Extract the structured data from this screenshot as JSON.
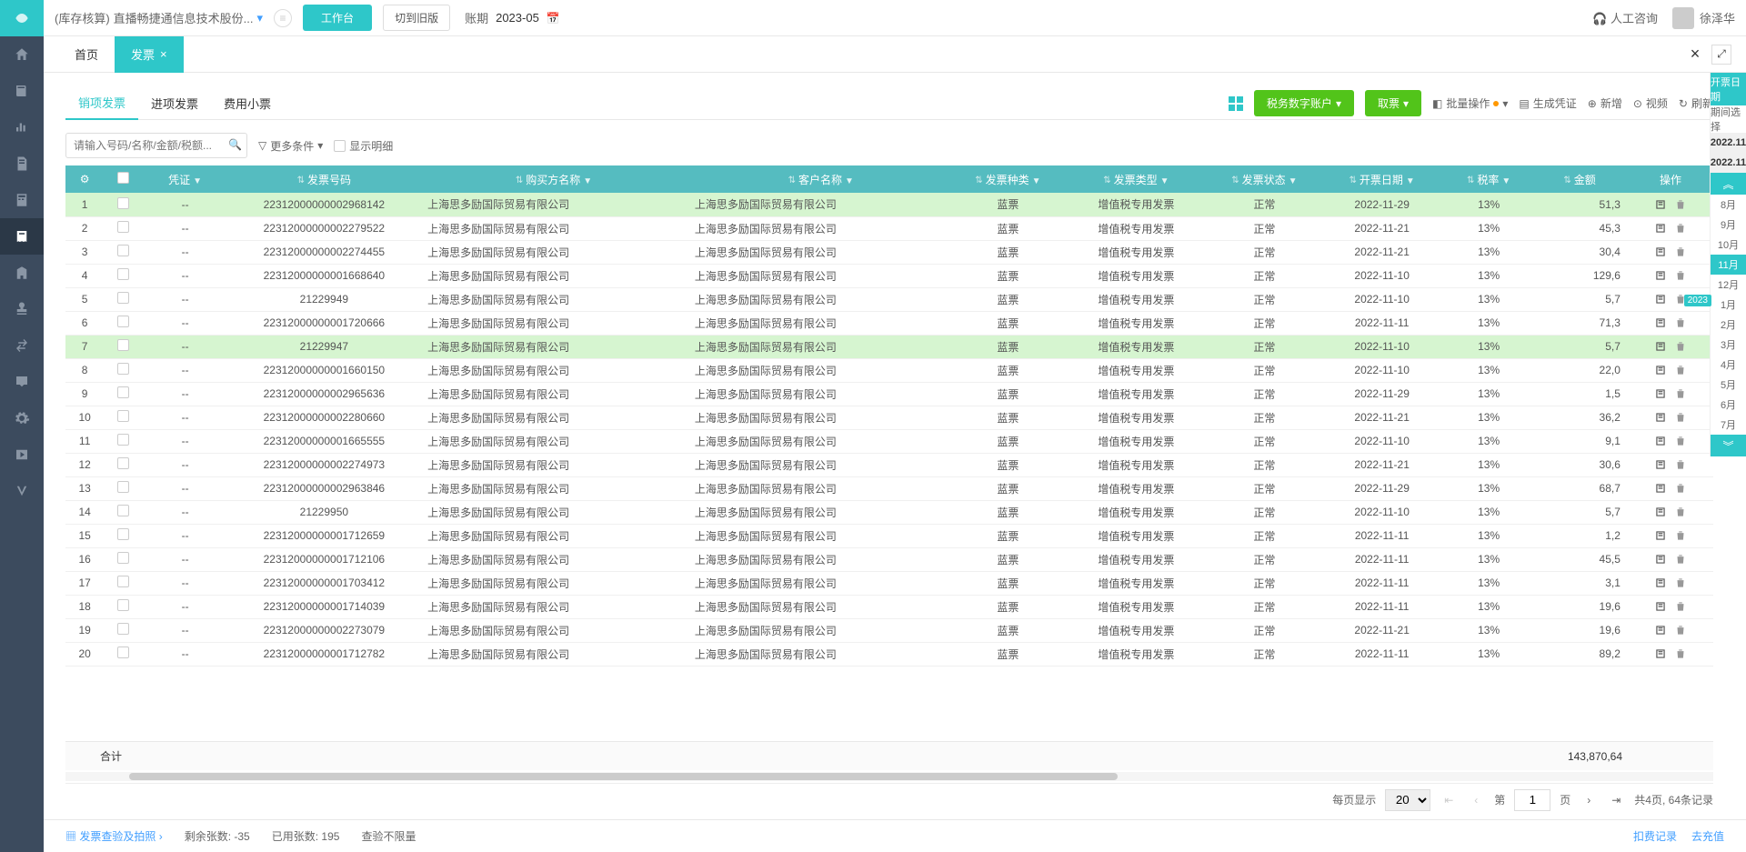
{
  "header": {
    "org_prefix": "(库存核算)",
    "org_name": "直播畅捷通信息技术股份...",
    "workspace_btn": "工作台",
    "switch_old": "切到旧版",
    "period_label": "账期",
    "period_value": "2023-05",
    "consult": "人工咨询",
    "user_name": "徐泽华"
  },
  "tabs": {
    "home": "首页",
    "invoice": "发票"
  },
  "subtabs": {
    "sales": "销项发票",
    "purchase": "进项发票",
    "expense": "费用小票"
  },
  "actions": {
    "tax_account": "税务数字账户",
    "get_invoice": "取票",
    "batch": "批量操作",
    "gen_voucher": "生成凭证",
    "add": "新增",
    "video": "视频",
    "refresh": "刷新"
  },
  "filters": {
    "search_placeholder": "请输入号码/名称/金额/税额...",
    "more": "更多条件",
    "show_detail": "显示明细"
  },
  "columns": {
    "gear": "⚙",
    "checkbox": "",
    "voucher": "凭证",
    "invoice_no": "发票号码",
    "buyer": "购买方名称",
    "customer": "客户名称",
    "invoice_kind": "发票种类",
    "invoice_type": "发票类型",
    "invoice_status": "发票状态",
    "bill_date": "开票日期",
    "tax_rate": "税率",
    "amount": "金额",
    "op": "操作"
  },
  "rows": [
    {
      "idx": 1,
      "hl": true,
      "voucher": "--",
      "no": "22312000000002968142",
      "buyer": "上海思多励国际贸易有限公司",
      "customer": "上海思多励国际贸易有限公司",
      "kind": "蓝票",
      "type": "增值税专用发票",
      "status": "正常",
      "date": "2022-11-29",
      "rate": "13%",
      "amt": "51,3"
    },
    {
      "idx": 2,
      "hl": false,
      "voucher": "--",
      "no": "22312000000002279522",
      "buyer": "上海思多励国际贸易有限公司",
      "customer": "上海思多励国际贸易有限公司",
      "kind": "蓝票",
      "type": "增值税专用发票",
      "status": "正常",
      "date": "2022-11-21",
      "rate": "13%",
      "amt": "45,3"
    },
    {
      "idx": 3,
      "hl": false,
      "voucher": "--",
      "no": "22312000000002274455",
      "buyer": "上海思多励国际贸易有限公司",
      "customer": "上海思多励国际贸易有限公司",
      "kind": "蓝票",
      "type": "增值税专用发票",
      "status": "正常",
      "date": "2022-11-21",
      "rate": "13%",
      "amt": "30,4"
    },
    {
      "idx": 4,
      "hl": false,
      "voucher": "--",
      "no": "22312000000001668640",
      "buyer": "上海思多励国际贸易有限公司",
      "customer": "上海思多励国际贸易有限公司",
      "kind": "蓝票",
      "type": "增值税专用发票",
      "status": "正常",
      "date": "2022-11-10",
      "rate": "13%",
      "amt": "129,6"
    },
    {
      "idx": 5,
      "hl": false,
      "voucher": "--",
      "no": "21229949",
      "buyer": "上海思多励国际贸易有限公司",
      "customer": "上海思多励国际贸易有限公司",
      "kind": "蓝票",
      "type": "增值税专用发票",
      "status": "正常",
      "date": "2022-11-10",
      "rate": "13%",
      "amt": "5,7"
    },
    {
      "idx": 6,
      "hl": false,
      "voucher": "--",
      "no": "22312000000001720666",
      "buyer": "上海思多励国际贸易有限公司",
      "customer": "上海思多励国际贸易有限公司",
      "kind": "蓝票",
      "type": "增值税专用发票",
      "status": "正常",
      "date": "2022-11-11",
      "rate": "13%",
      "amt": "71,3"
    },
    {
      "idx": 7,
      "hl": true,
      "voucher": "--",
      "no": "21229947",
      "buyer": "上海思多励国际贸易有限公司",
      "customer": "上海思多励国际贸易有限公司",
      "kind": "蓝票",
      "type": "增值税专用发票",
      "status": "正常",
      "date": "2022-11-10",
      "rate": "13%",
      "amt": "5,7"
    },
    {
      "idx": 8,
      "hl": false,
      "voucher": "--",
      "no": "22312000000001660150",
      "buyer": "上海思多励国际贸易有限公司",
      "customer": "上海思多励国际贸易有限公司",
      "kind": "蓝票",
      "type": "增值税专用发票",
      "status": "正常",
      "date": "2022-11-10",
      "rate": "13%",
      "amt": "22,0"
    },
    {
      "idx": 9,
      "hl": false,
      "voucher": "--",
      "no": "22312000000002965636",
      "buyer": "上海思多励国际贸易有限公司",
      "customer": "上海思多励国际贸易有限公司",
      "kind": "蓝票",
      "type": "增值税专用发票",
      "status": "正常",
      "date": "2022-11-29",
      "rate": "13%",
      "amt": "1,5"
    },
    {
      "idx": 10,
      "hl": false,
      "voucher": "--",
      "no": "22312000000002280660",
      "buyer": "上海思多励国际贸易有限公司",
      "customer": "上海思多励国际贸易有限公司",
      "kind": "蓝票",
      "type": "增值税专用发票",
      "status": "正常",
      "date": "2022-11-21",
      "rate": "13%",
      "amt": "36,2"
    },
    {
      "idx": 11,
      "hl": false,
      "voucher": "--",
      "no": "22312000000001665555",
      "buyer": "上海思多励国际贸易有限公司",
      "customer": "上海思多励国际贸易有限公司",
      "kind": "蓝票",
      "type": "增值税专用发票",
      "status": "正常",
      "date": "2022-11-10",
      "rate": "13%",
      "amt": "9,1"
    },
    {
      "idx": 12,
      "hl": false,
      "voucher": "--",
      "no": "22312000000002274973",
      "buyer": "上海思多励国际贸易有限公司",
      "customer": "上海思多励国际贸易有限公司",
      "kind": "蓝票",
      "type": "增值税专用发票",
      "status": "正常",
      "date": "2022-11-21",
      "rate": "13%",
      "amt": "30,6"
    },
    {
      "idx": 13,
      "hl": false,
      "voucher": "--",
      "no": "22312000000002963846",
      "buyer": "上海思多励国际贸易有限公司",
      "customer": "上海思多励国际贸易有限公司",
      "kind": "蓝票",
      "type": "增值税专用发票",
      "status": "正常",
      "date": "2022-11-29",
      "rate": "13%",
      "amt": "68,7"
    },
    {
      "idx": 14,
      "hl": false,
      "voucher": "--",
      "no": "21229950",
      "buyer": "上海思多励国际贸易有限公司",
      "customer": "上海思多励国际贸易有限公司",
      "kind": "蓝票",
      "type": "增值税专用发票",
      "status": "正常",
      "date": "2022-11-10",
      "rate": "13%",
      "amt": "5,7"
    },
    {
      "idx": 15,
      "hl": false,
      "voucher": "--",
      "no": "22312000000001712659",
      "buyer": "上海思多励国际贸易有限公司",
      "customer": "上海思多励国际贸易有限公司",
      "kind": "蓝票",
      "type": "增值税专用发票",
      "status": "正常",
      "date": "2022-11-11",
      "rate": "13%",
      "amt": "1,2"
    },
    {
      "idx": 16,
      "hl": false,
      "voucher": "--",
      "no": "22312000000001712106",
      "buyer": "上海思多励国际贸易有限公司",
      "customer": "上海思多励国际贸易有限公司",
      "kind": "蓝票",
      "type": "增值税专用发票",
      "status": "正常",
      "date": "2022-11-11",
      "rate": "13%",
      "amt": "45,5"
    },
    {
      "idx": 17,
      "hl": false,
      "voucher": "--",
      "no": "22312000000001703412",
      "buyer": "上海思多励国际贸易有限公司",
      "customer": "上海思多励国际贸易有限公司",
      "kind": "蓝票",
      "type": "增值税专用发票",
      "status": "正常",
      "date": "2022-11-11",
      "rate": "13%",
      "amt": "3,1"
    },
    {
      "idx": 18,
      "hl": false,
      "voucher": "--",
      "no": "22312000000001714039",
      "buyer": "上海思多励国际贸易有限公司",
      "customer": "上海思多励国际贸易有限公司",
      "kind": "蓝票",
      "type": "增值税专用发票",
      "status": "正常",
      "date": "2022-11-11",
      "rate": "13%",
      "amt": "19,6"
    },
    {
      "idx": 19,
      "hl": false,
      "voucher": "--",
      "no": "22312000000002273079",
      "buyer": "上海思多励国际贸易有限公司",
      "customer": "上海思多励国际贸易有限公司",
      "kind": "蓝票",
      "type": "增值税专用发票",
      "status": "正常",
      "date": "2022-11-21",
      "rate": "13%",
      "amt": "19,6"
    },
    {
      "idx": 20,
      "hl": false,
      "voucher": "--",
      "no": "22312000000001712782",
      "buyer": "上海思多励国际贸易有限公司",
      "customer": "上海思多励国际贸易有限公司",
      "kind": "蓝票",
      "type": "增值税专用发票",
      "status": "正常",
      "date": "2022-11-11",
      "rate": "13%",
      "amt": "89,2"
    }
  ],
  "total": {
    "label": "合计",
    "amount": "143,870,64"
  },
  "pagination": {
    "per_page_label": "每页显示",
    "per_page_value": "20",
    "di": "第",
    "page_value": "1",
    "ye": "页",
    "summary": "共4页, 64条记录"
  },
  "footer": {
    "title": "发票查验及拍照",
    "remain_label": "剩余张数:",
    "remain_value": "-35",
    "used_label": "已用张数:",
    "used_value": "195",
    "check_scope": "查验不限量",
    "deduct_log": "扣费记录",
    "recharge": "去充值"
  },
  "date_panel": {
    "header": "开票日期",
    "label": "期间选择",
    "years": [
      "2022.11",
      "2022.11"
    ],
    "months_top": [
      "8月",
      "9月",
      "10月",
      "11月",
      "12月"
    ],
    "active_month": "11月",
    "year_badge": "2023",
    "months_bot": [
      "1月",
      "2月",
      "3月",
      "4月",
      "5月",
      "6月",
      "7月"
    ]
  },
  "colors": {
    "teal": "#2ec7c9",
    "header_teal": "#55bcc0",
    "green": "#52c41a",
    "sidebar": "#3c4b5e",
    "highlight": "#d6f5d0"
  }
}
